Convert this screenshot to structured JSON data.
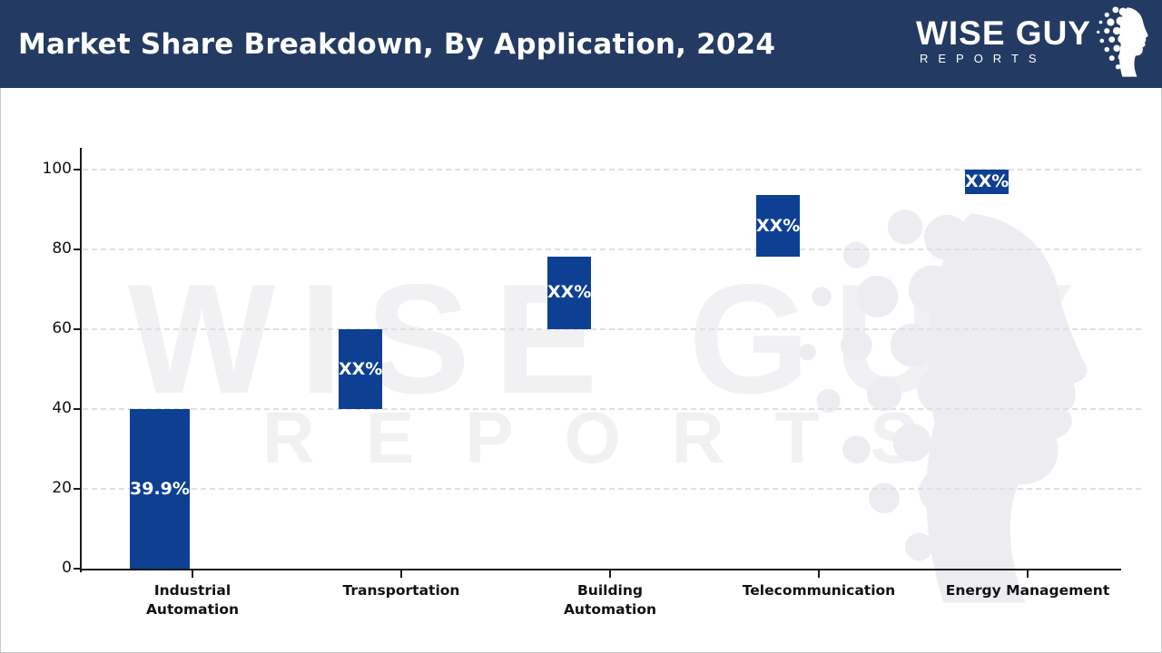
{
  "header": {
    "title": "Market Share Breakdown, By Application, 2024",
    "logo": {
      "name": "WISE GUY",
      "subtext": "REPORTS"
    }
  },
  "watermark": {
    "line1": "WISE GUY",
    "line2": "REPORTS"
  },
  "chart_data": {
    "type": "bar",
    "subtype": "floating-waterfall",
    "title": "Market Share Breakdown, By Application, 2024",
    "categories": [
      "Industrial Automation",
      "Transportation",
      "Building Automation",
      "Telecommunication",
      "Energy Management"
    ],
    "category_lines": [
      [
        "Industrial",
        "Automation"
      ],
      [
        "Transportation"
      ],
      [
        "Building",
        "Automation"
      ],
      [
        "Telecommunication"
      ],
      [
        "Energy Management"
      ]
    ],
    "segments": [
      {
        "category": "Industrial Automation",
        "start": 0,
        "end": 40,
        "value": 39.9,
        "label": "39.9%"
      },
      {
        "category": "Transportation",
        "start": 40,
        "end": 60,
        "value": 20,
        "label": "XX%"
      },
      {
        "category": "Building Automation",
        "start": 60,
        "end": 78.2,
        "value": 18.2,
        "label": "XX%"
      },
      {
        "category": "Telecommunication",
        "start": 78.2,
        "end": 93.6,
        "value": 15.4,
        "label": "XX%"
      },
      {
        "category": "Energy Management",
        "start": 93.9,
        "end": 100,
        "value": 6.1,
        "label": "XX%"
      }
    ],
    "yticks": [
      0,
      20,
      40,
      60,
      80,
      100
    ],
    "ylim": [
      0,
      105
    ],
    "xlabel": "",
    "ylabel": "",
    "grid": {
      "horizontal": true,
      "style": "dashed"
    },
    "legend": "none",
    "bar_color": "#0d4092",
    "bar_label_color": "#ffffff",
    "header_color": "#233a63"
  }
}
